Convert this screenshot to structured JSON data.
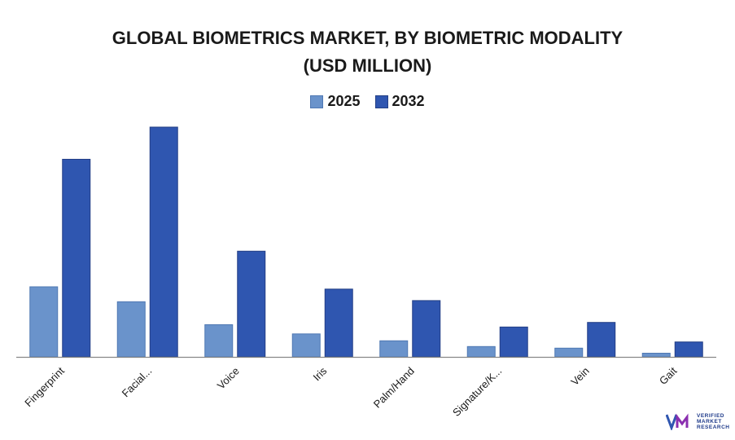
{
  "title_line1": "GLOBAL BIOMETRICS MARKET, BY BIOMETRIC MODALITY",
  "title_line2": "(USD MILLION)",
  "colors": {
    "y2025": "#6a93cb",
    "y2032": "#2f56b0",
    "axis": "#888888",
    "text": "#1a1a1a"
  },
  "legend": [
    {
      "label": "2025",
      "color": "#6a93cb"
    },
    {
      "label": "2032",
      "color": "#2f56b0"
    }
  ],
  "logo": {
    "line1": "VERIFIED",
    "line2": "MARKET",
    "line3": "RESEARCH"
  },
  "chart_data": {
    "type": "bar",
    "title": "GLOBAL BIOMETRICS MARKET, BY BIOMETRIC MODALITY (USD MILLION)",
    "xlabel": "",
    "ylabel": "",
    "ylim": [
      0,
      100
    ],
    "categories": [
      "Fingerprint",
      "Facial...",
      "Voice",
      "Iris",
      "Palm/Hand",
      "Signature/K...",
      "Vein",
      "Gait"
    ],
    "series": [
      {
        "name": "2025",
        "values": [
          30.5,
          24,
          14,
          10,
          7,
          4.5,
          3.8,
          1.6
        ]
      },
      {
        "name": "2032",
        "values": [
          86,
          100,
          46,
          29.5,
          24.5,
          13,
          15,
          6.5
        ]
      }
    ]
  }
}
